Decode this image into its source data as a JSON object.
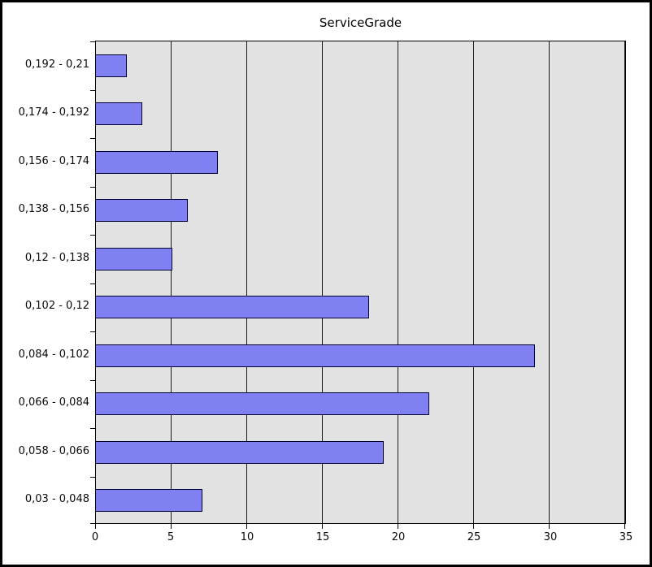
{
  "chart_data": {
    "type": "bar",
    "orientation": "horizontal",
    "title": "ServiceGrade",
    "categories": [
      "0,192 - 0,21",
      "0,174 - 0,192",
      "0,156 - 0,174",
      "0,138 - 0,156",
      "0,12 - 0,138",
      "0,102 - 0,12",
      "0,084 - 0,102",
      "0,066 - 0,084",
      "0,058 - 0,066",
      "0,03 - 0,048"
    ],
    "values": [
      2,
      3,
      8,
      6,
      5,
      18,
      29,
      22,
      19,
      7
    ],
    "xlabel": "",
    "ylabel": "",
    "xlim": [
      0,
      35
    ],
    "x_ticks": [
      0,
      5,
      10,
      15,
      20,
      25,
      30,
      35
    ],
    "grid": "vertical",
    "legend": "none",
    "colors": {
      "bar_fill": "#8080F2",
      "bar_border": "#000033",
      "plot_bg": "#E2E2E2",
      "gridline": "#1A1A1A",
      "axis": "#000000",
      "text": "#0A0A0A",
      "frame_border": "#000000",
      "background": "#FFFFFF"
    }
  }
}
